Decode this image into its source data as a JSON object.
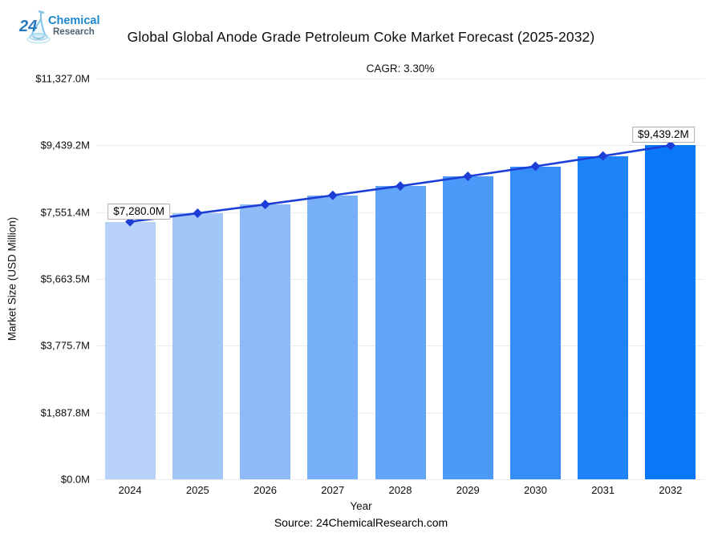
{
  "logo": {
    "number": "24",
    "word1": "Chemical",
    "word2": "Research"
  },
  "header": {
    "title": "Global Global Anode Grade Petroleum Coke Market Forecast (2025-2032)",
    "subtitle": "CAGR: 3.30%"
  },
  "source": "Source: 24ChemicalResearch.com",
  "chart_data": {
    "type": "bar",
    "overlay": "line",
    "title": "Global Global Anode Grade Petroleum Coke Market Forecast (2025-2032)",
    "subtitle": "CAGR: 3.30%",
    "xlabel": "Year",
    "ylabel": "Market Size (USD Million)",
    "categories": [
      "2024",
      "2025",
      "2026",
      "2027",
      "2028",
      "2029",
      "2030",
      "2031",
      "2032"
    ],
    "values": [
      7280.0,
      7520.2,
      7768.4,
      8024.8,
      8289.6,
      8563.1,
      8845.7,
      9137.6,
      9439.2
    ],
    "cagr_percent": 3.3,
    "ylim": [
      0,
      11327.0
    ],
    "y_ticks": [
      {
        "value": 0.0,
        "label": "$0.0M"
      },
      {
        "value": 1887.8,
        "label": "$1,887.8M"
      },
      {
        "value": 3775.7,
        "label": "$3,775.7M"
      },
      {
        "value": 5663.5,
        "label": "$5,663.5M"
      },
      {
        "value": 7551.4,
        "label": "$7,551.4M"
      },
      {
        "value": 9439.2,
        "label": "$9,439.2M"
      },
      {
        "value": 11327.0,
        "label": "$11,327.0M"
      }
    ],
    "annotations": [
      {
        "index": 0,
        "label": "$7,280.0M",
        "dx": 11
      },
      {
        "index": 8,
        "label": "$9,439.2M",
        "dx": -9
      }
    ],
    "grid": true,
    "legend": "none",
    "colors": {
      "bars": [
        "#b8d1f8",
        "#a3c6f8",
        "#8dbbf8",
        "#77b0f8",
        "#61a5f8",
        "#4b99f8",
        "#358ef8",
        "#1f83f8",
        "#0978f8"
      ],
      "line": "#1c3ed6",
      "marker": "#1c3ed6",
      "gridline": "#ececee",
      "annotation_border": "#b0b0b0"
    }
  }
}
